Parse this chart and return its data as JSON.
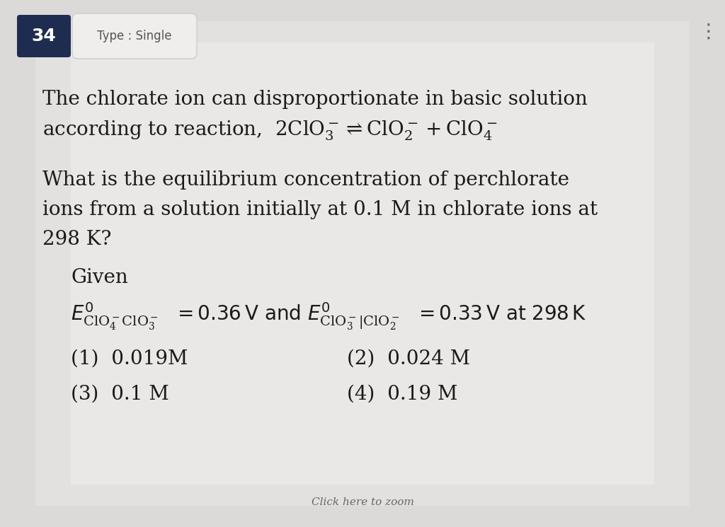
{
  "background_color": "#c8c6c4",
  "card_color": "#f0eeec",
  "question_number": "34",
  "question_type": "Type : Single",
  "question_number_bg": "#1e2d4f",
  "question_type_bg": "#f5f5f5",
  "main_text_line1": "The chlorate ion can disproportionate in basic solution",
  "main_text_line2": "according to reaction,",
  "question_line1": "What is the equilibrium concentration of perchlorate",
  "question_line2": "ions from a solution initially at 0.1 M in chlorate ions at",
  "question_line3": "298 K?",
  "given_label": "Given",
  "option1": "(1)  0.019M",
  "option2": "(2)  0.024 M",
  "option3": "(3)  0.1 M",
  "option4": "(4)  0.19 M",
  "font_size_main": 20,
  "font_size_options": 20,
  "text_color": "#1a1a1a",
  "dots_color": "#666666",
  "click_zoom_text": "Click here to zoom"
}
